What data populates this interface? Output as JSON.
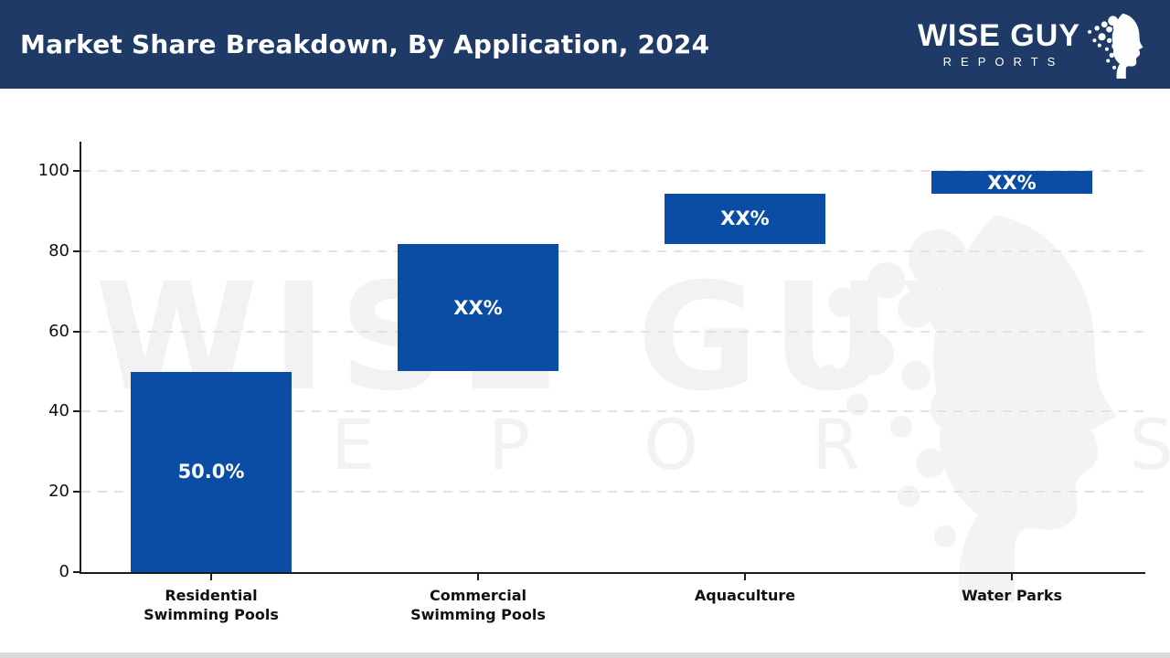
{
  "header": {
    "title": "Market Share Breakdown, By Application, 2024",
    "logo": {
      "name": "WISE GUY",
      "sub": "REPORTS"
    }
  },
  "watermark": {
    "top": "WISE GUY",
    "bottom": "R E P O R T S"
  },
  "colors": {
    "header_bg": "#1f3a66",
    "header_text": "#ffffff",
    "bar": "#0b4da4",
    "bar_label": "#ffffff",
    "grid": "#e2e2e2",
    "axis": "#1c1c1c",
    "tick_text": "#111111",
    "watermark": "#f2f2f2",
    "footer_strip": "#d9d9d9",
    "plot_bg": "#ffffff"
  },
  "chart_data": {
    "type": "bar",
    "subtype": "waterfall",
    "title": "Market Share Breakdown, By Application, 2024",
    "categories": [
      "Residential\nSwimming Pools",
      "Commercial\nSwimming Pools",
      "Aquaculture",
      "Water Parks"
    ],
    "bar_labels": [
      "50.0%",
      "XX%",
      "XX%",
      "XX%"
    ],
    "bar_ranges": [
      [
        0,
        50.0
      ],
      [
        50.0,
        81.8
      ],
      [
        81.8,
        94.3
      ],
      [
        94.3,
        100.0
      ]
    ],
    "segment_values": [
      50.0,
      31.8,
      12.5,
      5.7
    ],
    "xlabel": "",
    "ylabel": "",
    "ylim": [
      0,
      106
    ],
    "yticks": [
      0,
      20,
      40,
      60,
      80,
      100
    ],
    "grid": "horizontal-dashed",
    "legend": null
  }
}
